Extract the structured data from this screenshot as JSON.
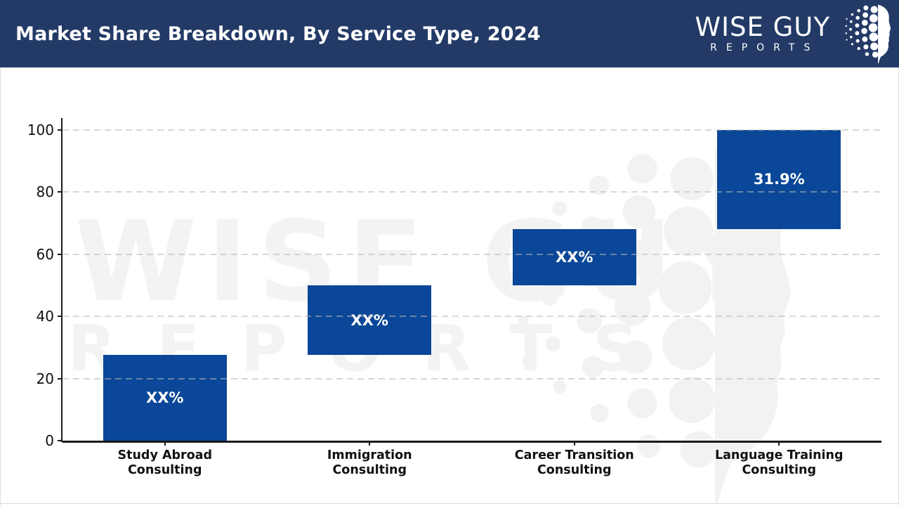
{
  "header": {
    "title": "Market Share Breakdown, By Service Type, 2024",
    "logo": {
      "wordmark": "WISE GUY",
      "subtext": "REPORTS"
    },
    "bg_color": "#233a67"
  },
  "watermark": {
    "wordmark": "WISE GUY",
    "subtext": "REPORTS"
  },
  "chart_data": {
    "type": "bar",
    "variant": "floating-waterfall",
    "title": "Market Share Breakdown, By Service Type, 2024",
    "categories": [
      "Study Abroad Consulting",
      "Immigration Consulting",
      "Career Transition Consulting",
      "Language Training Consulting"
    ],
    "category_lines": [
      [
        "Study Abroad",
        "Consulting"
      ],
      [
        "Immigration",
        "Consulting"
      ],
      [
        "Career Transition",
        "Consulting"
      ],
      [
        "Language Training",
        "Consulting"
      ]
    ],
    "bars": [
      {
        "start": 0,
        "end": 27.5,
        "label": "XX%"
      },
      {
        "start": 27.5,
        "end": 50,
        "label": "XX%"
      },
      {
        "start": 50,
        "end": 68.1,
        "label": "XX%"
      },
      {
        "start": 68.1,
        "end": 100,
        "label": "31.9%"
      }
    ],
    "y_ticks": [
      0,
      20,
      40,
      60,
      80,
      100
    ],
    "ylim": [
      0,
      104
    ],
    "xlabel": "",
    "ylabel": "",
    "grid": "horizontal-dashed",
    "legend": "none",
    "bar_color": "#0b4798",
    "bar_label_color": "#ffffff"
  }
}
